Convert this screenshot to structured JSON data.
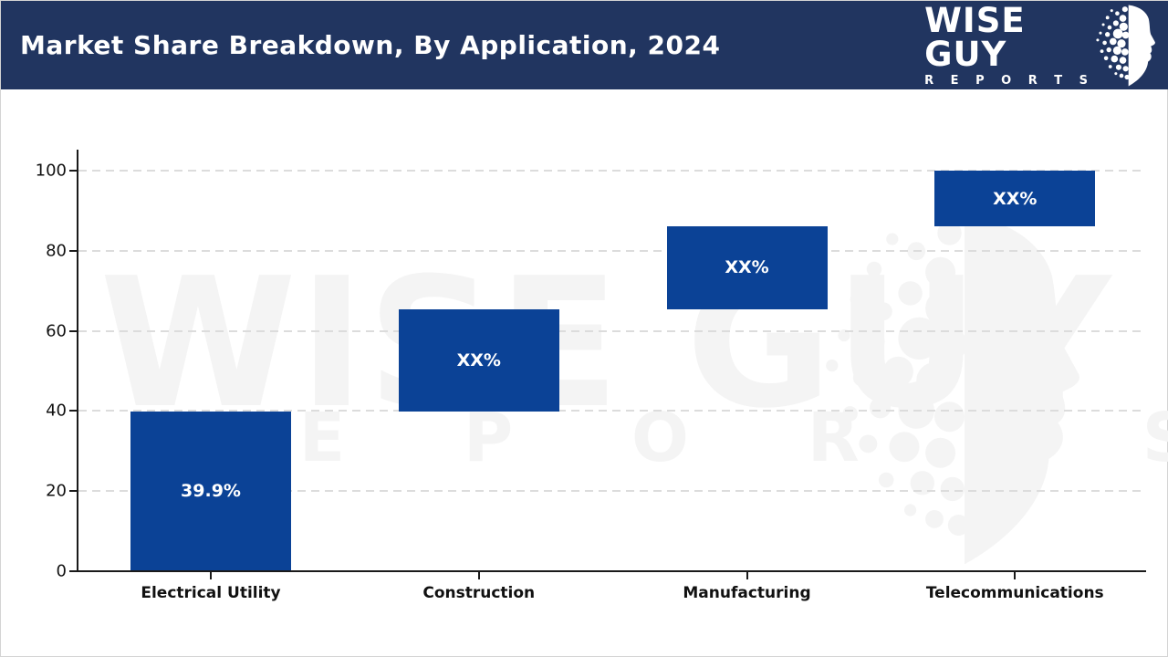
{
  "header": {
    "title": "Market Share Breakdown, By Application, 2024",
    "logo": {
      "line1": "WISE GUY",
      "line2": "R E P O R T S"
    }
  },
  "watermark": {
    "line1": "WISE GUY",
    "line2": "R E P O R T S"
  },
  "colors": {
    "header_bg": "#213560",
    "bar": "#0b4296",
    "grid": "#dcdcdc",
    "axis": "#1a1a1a",
    "watermark": "#f4f4f4",
    "bar_label": "#ffffff"
  },
  "chart_data": {
    "type": "bar",
    "subtype": "waterfall",
    "title": "Market Share Breakdown, By Application, 2024",
    "categories": [
      "Electrical Utility",
      "Construction",
      "Manufacturing",
      "Telecommunications"
    ],
    "segments": [
      {
        "category": "Electrical Utility",
        "start": 0,
        "end": 39.9,
        "label": "39.9%"
      },
      {
        "category": "Construction",
        "start": 39.9,
        "end": 65.4,
        "label": "XX%"
      },
      {
        "category": "Manufacturing",
        "start": 65.4,
        "end": 86.1,
        "label": "XX%"
      },
      {
        "category": "Telecommunications",
        "start": 86.1,
        "end": 100,
        "label": "XX%"
      }
    ],
    "xlabel": "",
    "ylabel": "",
    "ylim": [
      0,
      100
    ],
    "yticks": [
      0,
      20,
      40,
      60,
      80,
      100
    ],
    "grid": "horizontal-dashed",
    "legend": "none",
    "bar_color": "#0b4296"
  }
}
